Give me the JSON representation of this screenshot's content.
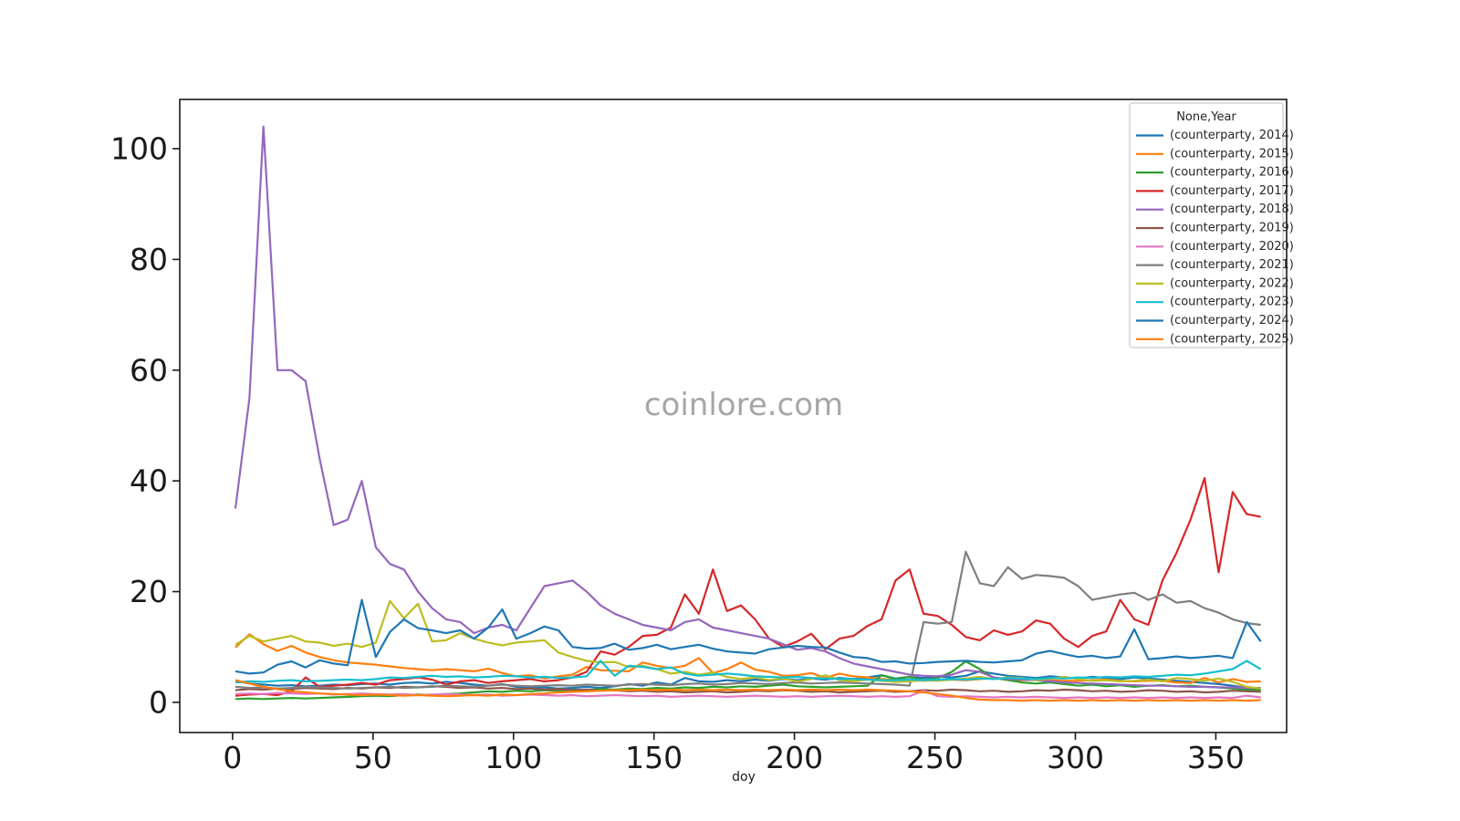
{
  "chart_data": {
    "type": "line",
    "title": "",
    "xlabel": "doy",
    "ylabel": "",
    "watermark": "coinlore.com",
    "legend_title": "None,Year",
    "legend_position": "upper right",
    "grid": false,
    "xlim": [
      -18.8,
      375.2
    ],
    "ylim": [
      -5.45,
      108.9
    ],
    "xticks": [
      0,
      50,
      100,
      150,
      200,
      250,
      300,
      350
    ],
    "yticks": [
      0,
      20,
      40,
      60,
      80,
      100
    ],
    "colors": {
      "background": "#ffffff",
      "axis": "#1a1a1a",
      "tick_label": "#1a1a1a",
      "watermark": "#a6a6a6",
      "legend_border": "#cccccc",
      "legend_text": "#262626"
    },
    "x": [
      1,
      6,
      11,
      16,
      21,
      26,
      31,
      36,
      41,
      46,
      51,
      56,
      61,
      66,
      71,
      76,
      81,
      86,
      91,
      96,
      101,
      106,
      111,
      116,
      121,
      126,
      131,
      136,
      141,
      146,
      151,
      156,
      161,
      166,
      171,
      176,
      181,
      186,
      191,
      196,
      201,
      206,
      211,
      216,
      221,
      226,
      231,
      236,
      241,
      246,
      251,
      256,
      261,
      266,
      271,
      276,
      281,
      286,
      291,
      296,
      301,
      306,
      311,
      316,
      321,
      326,
      331,
      336,
      341,
      346,
      351,
      356,
      361,
      366
    ],
    "series": [
      {
        "name": "(counterparty, 2014)",
        "year": "2014",
        "color": "#1f77b4",
        "values": [
          3.9,
          3.4,
          3.2,
          3,
          3.1,
          2.9,
          3,
          3.2,
          3.1,
          3.3,
          3.4,
          3.2,
          3.5,
          3.6,
          3.4,
          3.7,
          3.5,
          3.2,
          3,
          3.3,
          2.8,
          2.6,
          2.7,
          2.5,
          2.6,
          2.8,
          2.6,
          2.9,
          3.3,
          3,
          3.6,
          3.2,
          4.4,
          3.8,
          3.7,
          4,
          3.8,
          4.1,
          3.9,
          4.2,
          4,
          4.3,
          4.1,
          4.4,
          4.2,
          4.5,
          4.9,
          4.3,
          4.6,
          4.4,
          4.7,
          4.5,
          4.8,
          5.6,
          5.2,
          4.8,
          4.6,
          4.4,
          4.7,
          4.5,
          4.3,
          4.6,
          4.4,
          4.2,
          4.5,
          4.3,
          4.1,
          3.9,
          3.7,
          3.5,
          3.3,
          3,
          2.6,
          2.4
        ]
      },
      {
        "name": "(counterparty, 2015)",
        "year": "2015",
        "color": "#ff7f0e",
        "values": [
          9.9,
          12.3,
          10.5,
          9.3,
          10.2,
          9,
          8.2,
          7.6,
          7.2,
          7,
          6.8,
          6.5,
          6.2,
          6,
          5.8,
          6,
          5.8,
          5.6,
          6.1,
          5.3,
          4.7,
          4.9,
          4.3,
          4.7,
          5,
          6.4,
          5.8,
          5.7,
          5.6,
          7.2,
          6.6,
          6.2,
          6.6,
          8,
          5.3,
          6,
          7.2,
          5.9,
          5.5,
          4.8,
          4.9,
          5.3,
          4.4,
          5.2,
          4.7,
          4.5,
          4.2,
          4,
          4.1,
          3.9,
          4,
          4.1,
          4,
          4.2,
          4.4,
          4.1,
          4,
          4.1,
          4,
          3.9,
          3.9,
          4,
          4.1,
          3.9,
          3.8,
          3.9,
          3.9,
          3.6,
          3.5,
          4.4,
          3.6,
          4.2,
          3.7,
          3.8
        ]
      },
      {
        "name": "(counterparty, 2016)",
        "year": "2016",
        "color": "#2ca02c",
        "values": [
          0.6,
          0.7,
          0.6,
          0.7,
          0.8,
          0.7,
          0.8,
          0.9,
          1,
          1.1,
          1.2,
          1.1,
          1.3,
          1.4,
          1.3,
          1.5,
          1.6,
          1.8,
          2,
          1.9,
          2.1,
          2,
          2.2,
          2.1,
          2.3,
          2.2,
          2.4,
          2.3,
          2.5,
          2.4,
          2.6,
          2.5,
          2.7,
          2.6,
          2.8,
          2.7,
          2.9,
          2.8,
          3,
          3.2,
          2.9,
          2.8,
          2.7,
          2.8,
          2.9,
          3,
          4.9,
          4.2,
          4.6,
          4,
          4.4,
          5.5,
          7.4,
          6,
          4.4,
          4,
          3.6,
          3.4,
          3.6,
          3.3,
          3,
          3.2,
          2.9,
          3.1,
          2.8,
          3,
          3.1,
          2.9,
          3,
          2.8,
          2.7,
          2.5,
          2.3,
          2.2
        ]
      },
      {
        "name": "(counterparty, 2017)",
        "year": "2017",
        "color": "#d62728",
        "values": [
          1.2,
          1.4,
          1.5,
          1.3,
          2,
          4.5,
          2.8,
          3,
          3.2,
          3.5,
          3.2,
          4,
          4.2,
          4.5,
          4.1,
          3.2,
          3.8,
          4,
          3.5,
          3.8,
          4,
          4.2,
          3.8,
          4,
          4.5,
          5.5,
          9.2,
          8.6,
          10,
          12,
          12.2,
          13.5,
          19.5,
          16,
          24,
          16.5,
          17.5,
          15,
          11.5,
          10,
          11,
          12.4,
          9.6,
          11.5,
          12,
          13.8,
          15,
          22,
          24,
          16,
          15.6,
          14,
          11.8,
          11.2,
          13,
          12.2,
          12.8,
          14.8,
          14.2,
          11.5,
          10,
          12,
          12.8,
          18.5,
          15,
          14,
          22,
          27,
          33,
          40.5,
          23.5,
          38,
          34,
          33.5
        ]
      },
      {
        "name": "(counterparty, 2018)",
        "year": "2018",
        "color": "#9467bd",
        "values": [
          35,
          55,
          104,
          60,
          60,
          58,
          44,
          32,
          33,
          40,
          28,
          25,
          24,
          20,
          17,
          15,
          14.5,
          12.5,
          13.5,
          14,
          13,
          17,
          21,
          21.5,
          22,
          20,
          17.5,
          16,
          15,
          14,
          13.5,
          13,
          14.5,
          15,
          13.5,
          13,
          12.5,
          12,
          11.5,
          10.5,
          9.5,
          9.8,
          9.2,
          8,
          7,
          6.5,
          6,
          5.5,
          5,
          4.8,
          4.7,
          5,
          5.8,
          5.5,
          4.5,
          4.2,
          4.1,
          4,
          3.8,
          3.6,
          3.5,
          3.4,
          3.3,
          3.2,
          3.1,
          3,
          3,
          2.9,
          2.8,
          2.8,
          2.7,
          2.7,
          2.6,
          2.6
        ]
      },
      {
        "name": "(counterparty, 2019)",
        "year": "2019",
        "color": "#8c564b",
        "values": [
          2.2,
          2.4,
          2.3,
          2.5,
          2.4,
          2.6,
          2.5,
          2.4,
          2.6,
          2.5,
          2.7,
          2.6,
          2.8,
          2.7,
          2.9,
          2.8,
          2.6,
          2.7,
          2.5,
          2.6,
          2.4,
          2.5,
          2.3,
          2.4,
          2.2,
          2.3,
          2.1,
          2.2,
          2,
          2.1,
          1.9,
          2,
          1.8,
          1.9,
          2,
          1.8,
          1.9,
          2.1,
          2,
          2.2,
          2.1,
          1.9,
          2,
          1.8,
          1.9,
          2,
          2.1,
          1.9,
          2,
          2.2,
          2.1,
          2.3,
          2.2,
          2,
          2.1,
          1.9,
          2,
          2.2,
          2.1,
          2.3,
          2.2,
          2,
          2.1,
          1.9,
          2,
          2.2,
          2.1,
          1.9,
          2,
          1.8,
          1.9,
          2.1,
          2,
          1.9
        ]
      },
      {
        "name": "(counterparty, 2020)",
        "year": "2020",
        "color": "#e377c2",
        "values": [
          1.5,
          1.6,
          1.5,
          1.7,
          1.6,
          1.5,
          1.6,
          1.4,
          1.5,
          1.6,
          1.5,
          1.4,
          1.5,
          1.3,
          1.4,
          1.5,
          1.4,
          1.3,
          1.4,
          1.2,
          1.3,
          1.4,
          1.3,
          1.2,
          1.3,
          1.1,
          1.2,
          1.3,
          1.2,
          1.1,
          1.2,
          1,
          1.1,
          1.2,
          1.1,
          1,
          1.1,
          1.2,
          1.1,
          1,
          1.1,
          1,
          1.1,
          1.2,
          1.1,
          1,
          1.1,
          1,
          1.1,
          2.1,
          1.1,
          1,
          1.1,
          1,
          0.9,
          1,
          0.9,
          1,
          0.9,
          0.8,
          0.9,
          0.8,
          0.9,
          0.8,
          0.9,
          0.8,
          0.9,
          0.8,
          0.9,
          0.8,
          0.9,
          0.8,
          1.2,
          0.9
        ]
      },
      {
        "name": "(counterparty, 2021)",
        "year": "2021",
        "color": "#7f7f7f",
        "values": [
          2.8,
          2.6,
          2.7,
          2.5,
          2.6,
          2.8,
          2.7,
          2.6,
          2.5,
          2.6,
          2.7,
          2.8,
          2.6,
          2.7,
          2.8,
          3,
          2.9,
          2.8,
          3,
          3.2,
          3,
          2.9,
          3,
          3.1,
          3,
          3.2,
          3.1,
          3,
          3.2,
          3.3,
          3.2,
          3.1,
          3.3,
          3.4,
          3.2,
          3.3,
          3.5,
          3.4,
          3.3,
          3.5,
          3.6,
          3.4,
          3.5,
          3.6,
          3.5,
          3.4,
          3.3,
          3.2,
          3,
          14.5,
          14.2,
          14.5,
          27.2,
          21.5,
          21,
          24.4,
          22.3,
          23,
          22.8,
          22.5,
          21,
          18.5,
          19,
          19.5,
          19.8,
          18.5,
          19.5,
          18,
          18.3,
          17,
          16.2,
          15,
          14.3,
          14
        ]
      },
      {
        "name": "(counterparty, 2022)",
        "year": "2022",
        "color": "#bcbd22",
        "values": [
          10.4,
          12,
          11,
          11.5,
          12,
          11,
          10.8,
          10.2,
          10.6,
          10,
          10.8,
          18.3,
          15.2,
          17.8,
          11,
          11.2,
          12.5,
          11.5,
          10.8,
          10.3,
          10.8,
          11,
          11.2,
          9,
          8.2,
          7.5,
          7.2,
          7.3,
          6.4,
          6.6,
          6,
          5.2,
          5.5,
          5,
          5.4,
          4.6,
          4.2,
          4.5,
          4,
          4.3,
          3.8,
          4.2,
          4.9,
          4,
          3.8,
          4.1,
          3.9,
          3.7,
          3.8,
          4,
          3.9,
          4.1,
          4.3,
          4.6,
          4.2,
          4.5,
          4.4,
          4,
          4.3,
          4.6,
          4.2,
          3.9,
          4,
          3.8,
          3.9,
          4.1,
          3.8,
          4.4,
          4.2,
          3.9,
          4.3,
          3.7,
          2.8,
          2.5
        ]
      },
      {
        "name": "(counterparty, 2023)",
        "year": "2023",
        "color": "#17becf",
        "values": [
          3.6,
          3.8,
          3.7,
          3.9,
          4,
          3.8,
          3.9,
          4,
          4.1,
          4,
          4.2,
          4.5,
          4.4,
          4.6,
          4.8,
          4.6,
          4.7,
          4.5,
          4.6,
          4.8,
          4.7,
          4.5,
          4.6,
          4.4,
          4.5,
          4.7,
          7.5,
          4.8,
          6.6,
          6.4,
          6,
          6.3,
          5.2,
          4.8,
          5,
          5.2,
          5,
          4.7,
          4.6,
          4.5,
          4.6,
          4.4,
          4.3,
          4.2,
          4.2,
          4.1,
          4,
          4,
          4.1,
          4,
          4.1,
          4.2,
          4.1,
          4.3,
          4.2,
          4.4,
          4.3,
          4.2,
          4.4,
          4.3,
          4.5,
          4.4,
          4.6,
          4.5,
          4.7,
          4.6,
          4.8,
          5,
          4.9,
          5.2,
          5.6,
          6,
          7.5,
          6
        ]
      },
      {
        "name": "(counterparty, 2024)",
        "year": "2024",
        "color": "#1f77b4",
        "values": [
          5.6,
          5.2,
          5.4,
          6.8,
          7.4,
          6.3,
          7.6,
          7,
          6.7,
          18.5,
          8.2,
          12.7,
          15,
          13.4,
          13,
          12.5,
          13,
          11.5,
          13.5,
          16.8,
          11.5,
          12.5,
          13.7,
          13,
          10,
          9.7,
          9.8,
          10.6,
          9.5,
          9.8,
          10.4,
          9.6,
          10,
          10.4,
          9.7,
          9.2,
          9,
          8.8,
          9.6,
          9.9,
          10.2,
          10,
          9.9,
          9,
          8.2,
          8,
          7.3,
          7.4,
          7,
          7.1,
          7.3,
          7.4,
          7.5,
          7.3,
          7.2,
          7.4,
          7.6,
          8.8,
          9.3,
          8.7,
          8.2,
          8.4,
          8,
          8.3,
          13.2,
          7.8,
          8,
          8.3,
          8,
          8.2,
          8.4,
          8,
          14.5,
          11
        ]
      },
      {
        "name": "(counterparty, 2025)",
        "year": "2025",
        "color": "#ff7f0e",
        "values": [
          4,
          3.4,
          2.8,
          2.4,
          2,
          1.8,
          1.6,
          1.5,
          1.4,
          1.3,
          1.4,
          1.3,
          1.2,
          1.3,
          1.2,
          1.1,
          1.2,
          1.3,
          1.2,
          1.4,
          1.3,
          1.5,
          1.6,
          1.8,
          1.9,
          2,
          2.1,
          2.2,
          2.2,
          2.3,
          2.2,
          2.3,
          2.2,
          2.3,
          2.2,
          2.3,
          2.2,
          2.3,
          2.2,
          2.3,
          2.2,
          2.3,
          2.2,
          2.3,
          2.2,
          2.3,
          2.2,
          2.1,
          2,
          1.8,
          1.5,
          1.2,
          0.8,
          0.5,
          0.4,
          0.4,
          0.3,
          0.4,
          0.3,
          0.4,
          0.3,
          0.4,
          0.3,
          0.4,
          0.3,
          0.4,
          0.3,
          0.4,
          0.3,
          0.4,
          0.3,
          0.4,
          0.3,
          0.4
        ]
      }
    ]
  }
}
